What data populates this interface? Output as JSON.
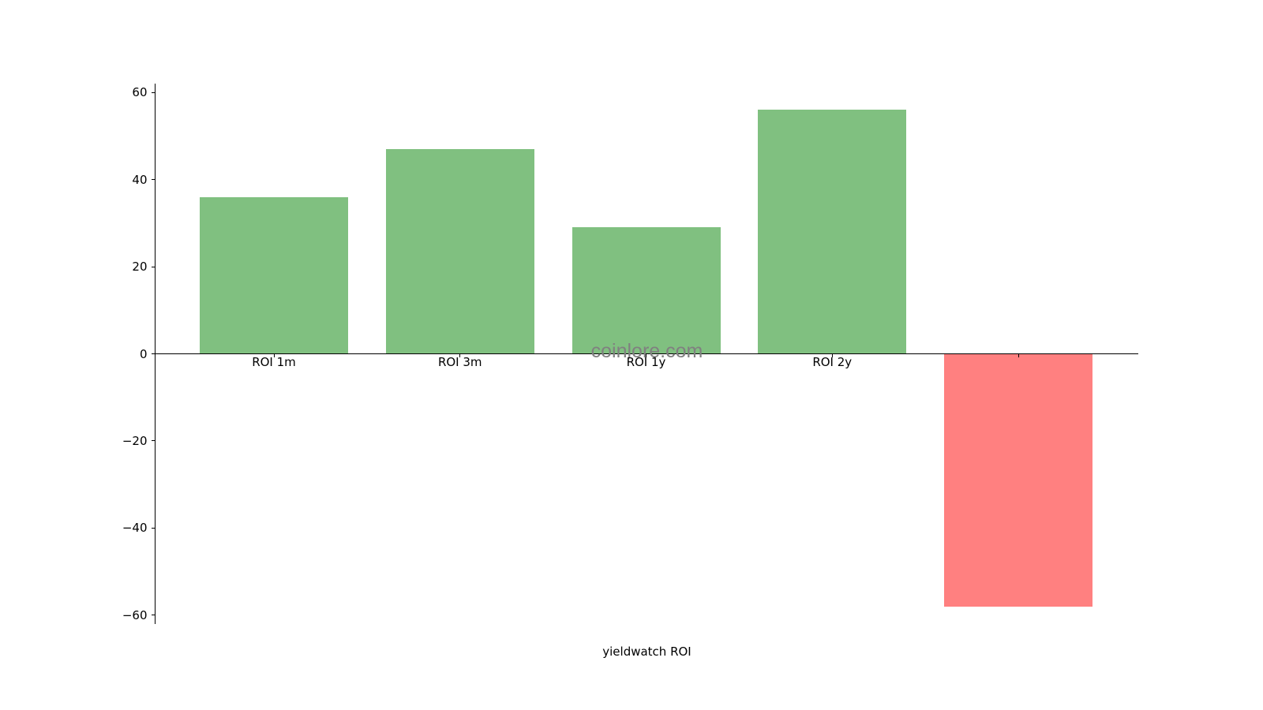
{
  "chart_data": {
    "type": "bar",
    "categories": [
      "ROI 1m",
      "ROI 3m",
      "ROI 1y",
      "ROI 2y",
      ""
    ],
    "values": [
      36,
      47,
      29,
      56,
      -58
    ],
    "positive_color": "#80C080",
    "negative_color": "#FF8080",
    "title": "",
    "xlabel": "yieldwatch ROI",
    "ylabel": "",
    "ylim": [
      -62,
      62
    ],
    "y_ticks": [
      60,
      40,
      20,
      0,
      -20,
      -40,
      -60
    ],
    "y_tick_labels": [
      "60",
      "40",
      "20",
      "0",
      "−20",
      "−40",
      "−60"
    ],
    "grid": false,
    "legend": null,
    "axis_color": "#000000",
    "watermark": "coinlore.com",
    "watermark_color": "#808080"
  }
}
